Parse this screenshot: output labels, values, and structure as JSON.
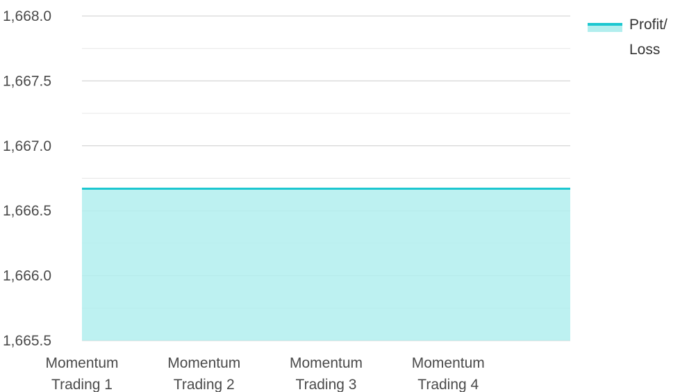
{
  "colors": {
    "series_line": "#1cc7d0",
    "series_fill": "#b2eeee",
    "gridline_major": "#cccccc",
    "gridline_minor": "#e6e6e6",
    "tick_text": "#4a4a4a"
  },
  "legend": {
    "position": "top-right",
    "line1": "Profit/",
    "line2": "Loss"
  },
  "chart_data": {
    "type": "area",
    "categories": [
      [
        "Momentum",
        "Trading 1"
      ],
      [
        "Momentum",
        "Trading 2"
      ],
      [
        "Momentum",
        "Trading 3"
      ],
      [
        "Momentum",
        "Trading 4"
      ]
    ],
    "series": [
      {
        "name": "Profit/Loss",
        "values": [
          1666.67,
          1666.67,
          1666.67,
          1666.67
        ]
      }
    ],
    "ylim": [
      1665.5,
      1668.0
    ],
    "yticks": [
      "1,665.5",
      "1,666.0",
      "1,666.5",
      "1,667.0",
      "1,667.5",
      "1,668.0"
    ],
    "grid": true,
    "title": "",
    "xlabel": "",
    "ylabel": ""
  }
}
